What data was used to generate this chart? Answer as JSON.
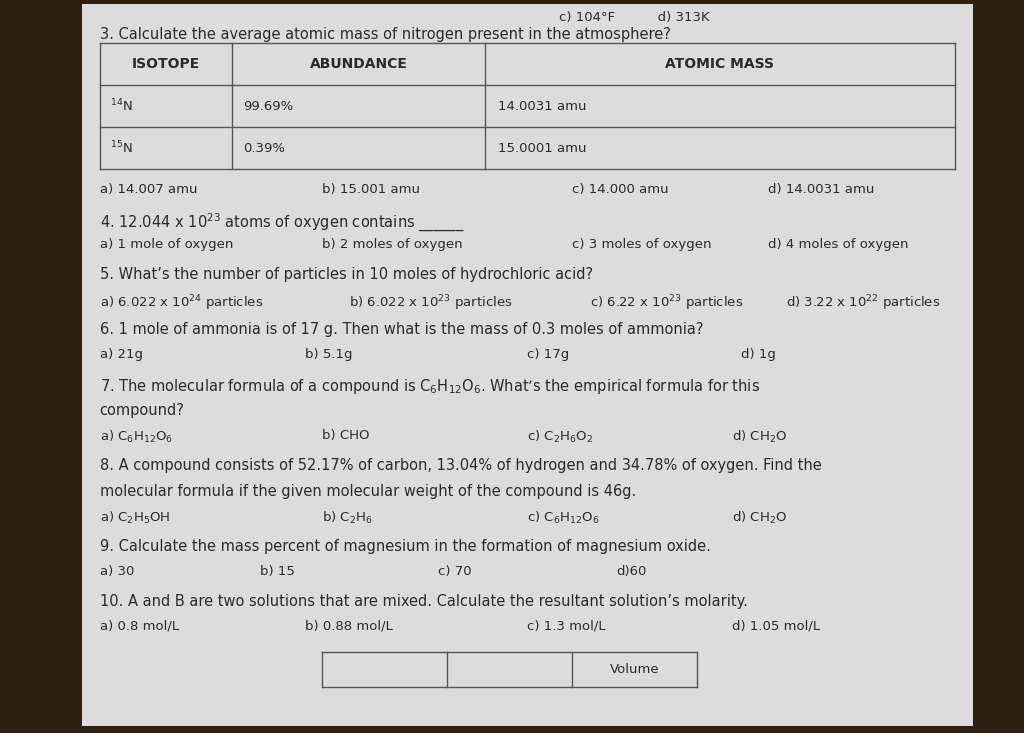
{
  "bg_color_left": "#4a3728",
  "bg_color_right": "#1a1a2e",
  "paper_color": "#e8e8e8",
  "title_top": "c) 104°F          d) 313K",
  "q3_text": "3. Calculate the average atomic mass of nitrogen present in the atmosphere?",
  "table_headers": [
    "ISOTOPE",
    "ABUNDANCE",
    "ATOMIC MASS"
  ],
  "table_rows": [
    [
      "$^{14}$N",
      "99.69%",
      "14.0031 amu"
    ],
    [
      "$^{15}$N",
      "0.39%",
      "15.0001 amu"
    ]
  ],
  "q3_options_a": "a) 14.007 amu",
  "q3_options_b": "b) 15.001 amu",
  "q3_options_c": "c) 14.000 amu",
  "q3_options_d": "d) 14.0031 amu",
  "q4_line1": "4. 12.044 x 10$^{23}$ atoms of oxygen contains ______",
  "q4_options_a": "a) 1 mole of oxygen",
  "q4_options_b": "b) 2 moles of oxygen",
  "q4_options_c": "c) 3 moles of oxygen",
  "q4_options_d": "d) 4 moles of oxygen",
  "q5_line1": "5. What’s the number of particles in 10 moles of hydrochloric acid?",
  "q5_options_a": "a) 6.022 x 10$^{24}$ particles",
  "q5_options_b": "b) 6.022 x 10$^{23}$ particles",
  "q5_options_c": "c) 6.22 x 10$^{23}$ particles",
  "q5_options_d": "d) 3.22 x 10$^{22}$ particles",
  "q6_line1": "6. 1 mole of ammonia is of 17 g. Then what is the mass of 0.3 moles of ammonia?",
  "q6_options_a": "a) 21g",
  "q6_options_b": "b) 5.1g",
  "q6_options_c": "c) 17g",
  "q6_options_d": "d) 1g",
  "q7_line1": "7. The molecular formula of a compound is C$_6$H$_{12}$O$_6$. What’s the empirical formula for this",
  "q7_line2": "compound?",
  "q7_options_a": "a) C$_6$H$_{12}$O$_6$",
  "q7_options_b": "b) CHO",
  "q7_options_c": "c) C$_2$H$_6$O$_2$",
  "q7_options_d": "d) CH$_2$O",
  "q8_line1": "8. A compound consists of 52.17% of carbon, 13.04% of hydrogen and 34.78% of oxygen. Find the",
  "q8_line2": "molecular formula if the given molecular weight of the compound is 46g.",
  "q8_options_a": "a) C$_2$H$_5$OH",
  "q8_options_b": "b) C$_2$H$_6$",
  "q8_options_c": "c) C$_6$H$_{12}$O$_6$",
  "q8_options_d": "d) CH$_2$O",
  "q9_line1": "9. Calculate the mass percent of magnesium in the formation of magnesium oxide.",
  "q9_options_a": "a) 30",
  "q9_options_b": "b) 15",
  "q9_options_c": "c) 70",
  "q9_options_d": "d)60",
  "q10_line1": "10. A and B are two solutions that are mixed. Calculate the resultant solution’s molarity.",
  "q10_options_a": "a) 0.8 mol/L",
  "q10_options_b": "b) 0.88 mol/L",
  "q10_options_c": "c) 1.3 mol/L",
  "q10_options_d": "d) 1.05 mol/L",
  "bottom_label": "Volume",
  "text_color": "#2a2a2a",
  "fs": 10.5,
  "fs_sm": 9.5,
  "fs_hdr": 10.0
}
